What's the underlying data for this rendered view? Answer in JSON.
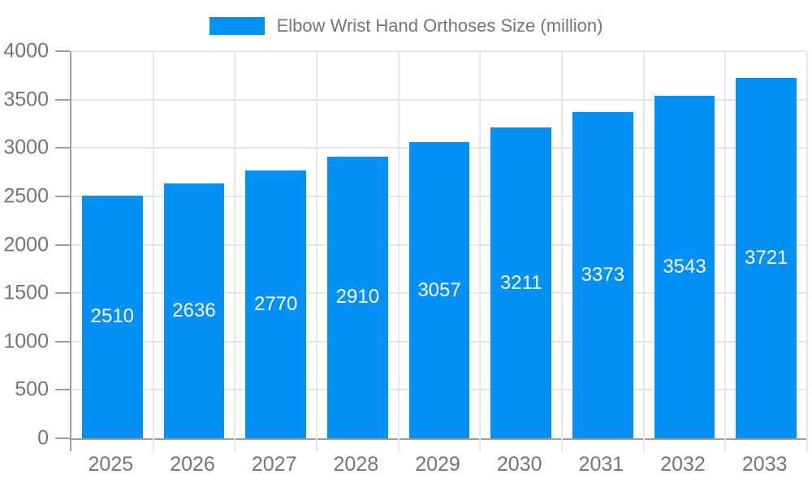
{
  "legend": {
    "label": "Elbow Wrist Hand Orthoses Size (million)"
  },
  "chart_data": {
    "type": "bar",
    "title": "Elbow Wrist Hand Orthoses Size (million)",
    "series_name": "Elbow Wrist Hand Orthoses Size (million)",
    "categories": [
      "2025",
      "2026",
      "2027",
      "2028",
      "2029",
      "2030",
      "2031",
      "2032",
      "2033"
    ],
    "values": [
      2510,
      2636,
      2770,
      2910,
      3057,
      3211,
      3373,
      3543,
      3721
    ],
    "xlabel": "",
    "ylabel": "",
    "ylim": [
      0,
      4000
    ],
    "ytick_step": 500,
    "grid": true,
    "legend_position": "top-center",
    "bar_labels_inside": true,
    "colors": {
      "bar": "#0590f5",
      "bar_label": "#ffffff",
      "axis": "#9e9e9e",
      "grid": "#e6e6e6",
      "text": "#757575",
      "background": "#ffffff"
    }
  }
}
